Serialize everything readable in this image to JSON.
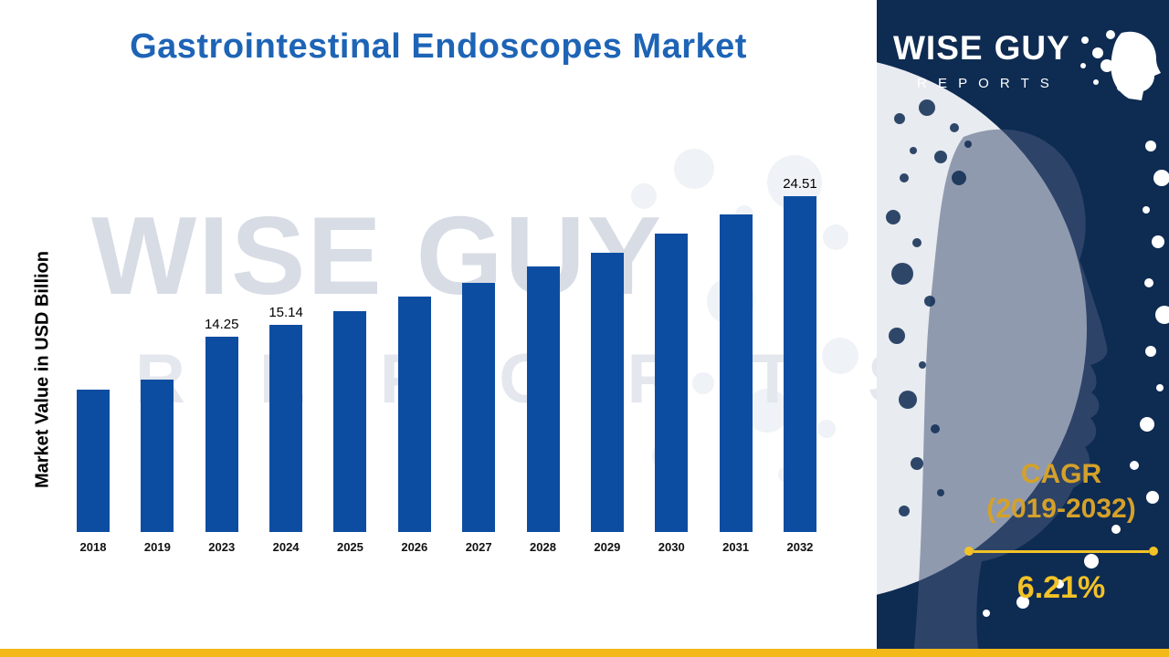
{
  "title": "Gastrointestinal Endoscopes Market",
  "y_axis_label": "Market Value in USD Billion",
  "watermark": {
    "line1": "WISE GUY",
    "line2": "R E P O R T S"
  },
  "logo": {
    "wise": "WISE",
    "guy": "GUY",
    "reports": "R E P O R T S"
  },
  "cagr": {
    "label": "CAGR",
    "range": "(2019-2032)",
    "value": "6.21%"
  },
  "colors": {
    "bar": "#0c4da2",
    "title": "#1e64b6",
    "panel": "#0e2b52",
    "cagr_gold": "#d4a12a",
    "accent_yellow": "#f2c227",
    "bottom_strip": "#f2b919"
  },
  "chart_data": {
    "type": "bar",
    "title": "Gastrointestinal Endoscopes Market",
    "xlabel": "",
    "ylabel": "Market Value in USD Billion",
    "categories": [
      "2018",
      "2019",
      "2023",
      "2024",
      "2025",
      "2026",
      "2027",
      "2028",
      "2029",
      "2030",
      "2031",
      "2032"
    ],
    "values": [
      10.4,
      11.1,
      14.25,
      15.14,
      16.1,
      17.2,
      18.2,
      19.4,
      20.4,
      21.8,
      23.2,
      24.51
    ],
    "bar_labels": [
      "",
      "",
      "14.25",
      "15.14",
      "",
      "",
      "",
      "",
      "",
      "",
      "",
      "24.51"
    ],
    "ylim": [
      0,
      28
    ],
    "grid": false,
    "legend": false
  }
}
